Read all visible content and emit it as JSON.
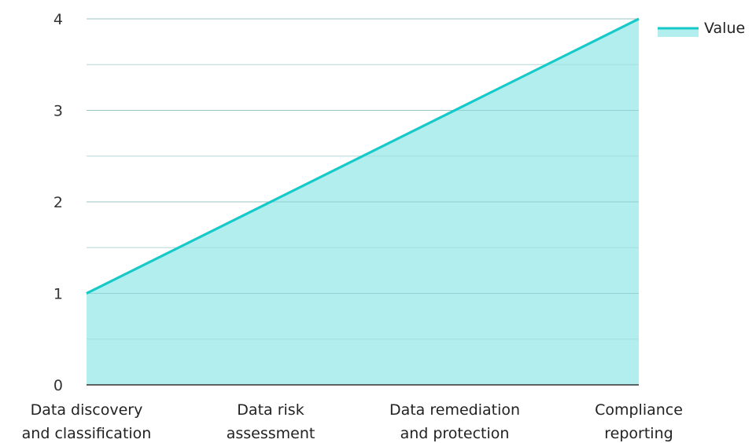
{
  "chart_data": {
    "type": "area",
    "categories": [
      [
        "Data discovery",
        "and classification"
      ],
      [
        "Data risk",
        "assessment"
      ],
      [
        "Data remediation",
        "and protection"
      ],
      [
        "Compliance",
        "reporting"
      ]
    ],
    "series": [
      {
        "name": "Value",
        "values": [
          1,
          2,
          3,
          4
        ]
      }
    ],
    "ylim": [
      0,
      4
    ],
    "yticks": [
      "0",
      "1",
      "2",
      "3",
      "4"
    ],
    "grid": true,
    "legend_position": "top-right",
    "colors": {
      "line": "#17c9c9",
      "fill": "#b2eeee",
      "grid": "#cccccc",
      "axis": "#333333"
    }
  }
}
